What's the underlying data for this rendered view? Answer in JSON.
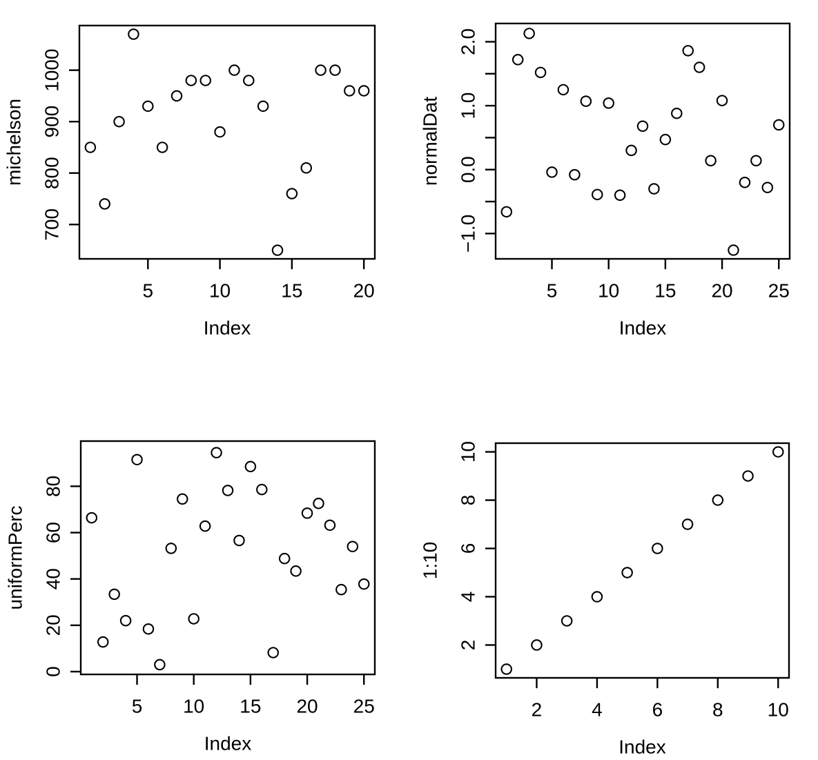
{
  "figure": {
    "background": "#ffffff",
    "draw_color": "#000000",
    "marker": "open-circle",
    "layout": "2x2-grid"
  },
  "chart_data": [
    {
      "type": "scatter",
      "title": "",
      "xlabel": "Index",
      "ylabel": "michelson",
      "x": [
        1,
        2,
        3,
        4,
        5,
        6,
        7,
        8,
        9,
        10,
        11,
        12,
        13,
        14,
        15,
        16,
        17,
        18,
        19,
        20
      ],
      "y": [
        850,
        740,
        900,
        1070,
        930,
        850,
        950,
        980,
        980,
        880,
        1000,
        980,
        930,
        650,
        760,
        810,
        1000,
        1000,
        960,
        960
      ],
      "xlim": [
        0.24,
        20.76
      ],
      "ylim": [
        633.2,
        1086.8
      ],
      "xticks": {
        "values": [
          5,
          10,
          15,
          20
        ],
        "labels": [
          "5",
          "10",
          "15",
          "20"
        ]
      },
      "yticks": {
        "values": [
          700,
          800,
          900,
          1000
        ],
        "labels": [
          "700",
          "800",
          "900",
          "1000"
        ]
      },
      "grid": false,
      "legend": null,
      "point_color": "#000000"
    },
    {
      "type": "scatter",
      "title": "",
      "xlabel": "Index",
      "ylabel": "normalDat",
      "x": [
        1,
        2,
        3,
        4,
        5,
        6,
        7,
        8,
        9,
        10,
        11,
        12,
        13,
        14,
        15,
        16,
        17,
        18,
        19,
        20,
        21,
        22,
        23,
        24,
        25
      ],
      "y": [
        -0.66,
        1.72,
        2.13,
        1.52,
        -0.04,
        1.25,
        -0.08,
        1.07,
        -0.39,
        1.04,
        -0.4,
        0.3,
        0.68,
        -0.3,
        0.47,
        0.88,
        1.86,
        1.6,
        0.14,
        1.08,
        -1.26,
        -0.2,
        0.14,
        -0.28,
        0.7
      ],
      "xlim": [
        0.04,
        25.96
      ],
      "ylim": [
        -1.396,
        2.286
      ],
      "xticks": {
        "values": [
          5,
          10,
          15,
          20,
          25
        ],
        "labels": [
          "5",
          "10",
          "15",
          "20",
          "25"
        ]
      },
      "yticks": {
        "values": [
          -1.0,
          -0.5,
          0.0,
          0.5,
          1.0,
          1.5,
          2.0
        ],
        "labels": [
          "−1.0",
          "",
          "0.0",
          "",
          "1.0",
          "",
          "2.0"
        ]
      },
      "grid": false,
      "legend": null,
      "point_color": "#000000"
    },
    {
      "type": "scatter",
      "title": "",
      "xlabel": "Index",
      "ylabel": "uniformPerc",
      "x": [
        1,
        2,
        3,
        4,
        5,
        6,
        7,
        8,
        9,
        10,
        11,
        12,
        13,
        14,
        15,
        16,
        17,
        18,
        19,
        20,
        21,
        22,
        23,
        24,
        25
      ],
      "y": [
        66.4,
        12.8,
        33.4,
        22.0,
        91.5,
        18.4,
        3.0,
        53.2,
        74.5,
        22.8,
        62.8,
        94.5,
        78.2,
        56.6,
        88.5,
        78.6,
        8.2,
        48.8,
        43.4,
        68.4,
        72.6,
        63.2,
        35.4,
        54.0,
        37.8
      ],
      "xlim": [
        0.04,
        25.96
      ],
      "ylim": [
        -1.2,
        99.5
      ],
      "xticks": {
        "values": [
          5,
          10,
          15,
          20,
          25
        ],
        "labels": [
          "5",
          "10",
          "15",
          "20",
          "25"
        ]
      },
      "yticks": {
        "values": [
          0,
          20,
          40,
          60,
          80
        ],
        "labels": [
          "0",
          "20",
          "40",
          "60",
          "80"
        ]
      },
      "grid": false,
      "legend": null,
      "point_color": "#000000"
    },
    {
      "type": "scatter",
      "title": "",
      "xlabel": "Index",
      "ylabel": "1:10",
      "x": [
        1,
        2,
        3,
        4,
        5,
        6,
        7,
        8,
        9,
        10
      ],
      "y": [
        1,
        2,
        3,
        4,
        5,
        6,
        7,
        8,
        9,
        10
      ],
      "xlim": [
        0.64,
        10.36
      ],
      "ylim": [
        0.64,
        10.36
      ],
      "xticks": {
        "values": [
          2,
          4,
          6,
          8,
          10
        ],
        "labels": [
          "2",
          "4",
          "6",
          "8",
          "10"
        ]
      },
      "yticks": {
        "values": [
          2,
          4,
          6,
          8,
          10
        ],
        "labels": [
          "2",
          "4",
          "6",
          "8",
          "10"
        ]
      },
      "grid": false,
      "legend": null,
      "point_color": "#000000"
    }
  ]
}
